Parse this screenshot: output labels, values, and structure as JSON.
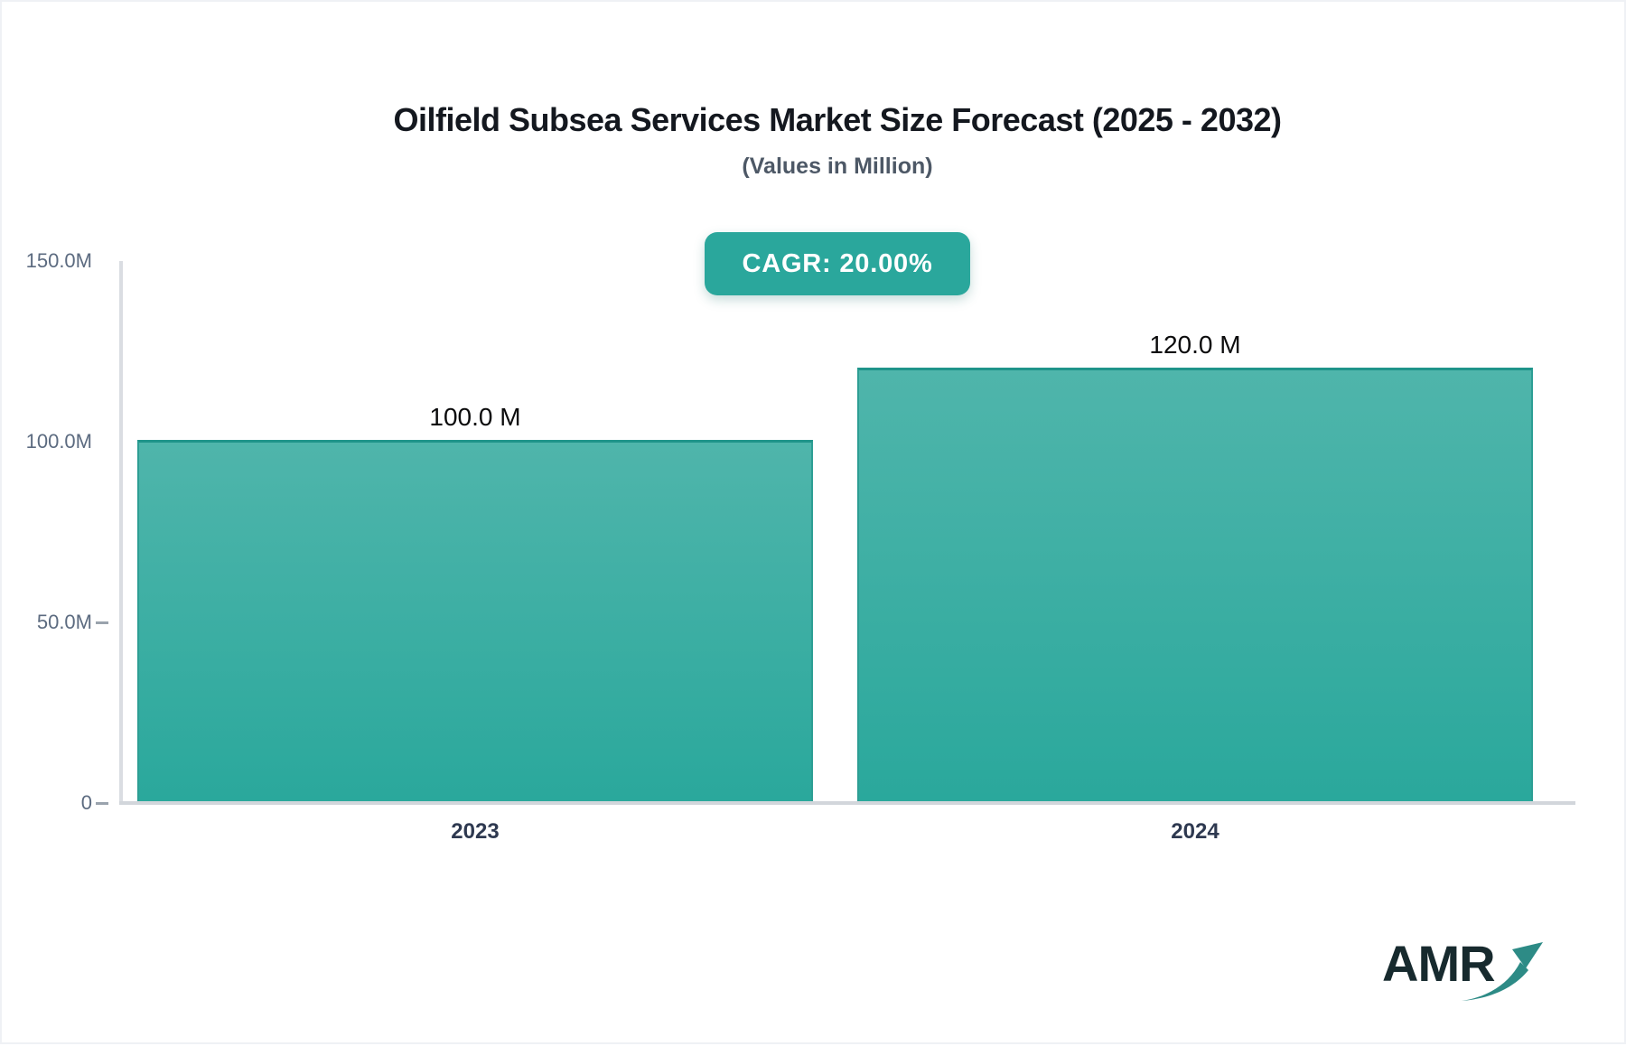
{
  "header": {
    "title": "Oilfield Subsea Services Market Size Forecast (2025 - 2032)",
    "subtitle": "(Values in Million)",
    "cagr_badge": "CAGR: 20.00%"
  },
  "chart_data": {
    "type": "bar",
    "title": "Oilfield Subsea Services Market Size Forecast (2025 - 2032)",
    "subtitle": "(Values in Million)",
    "unit": "Million",
    "categories": [
      "2023",
      "2024"
    ],
    "values": [
      100.0,
      120.0
    ],
    "value_labels": [
      "100.0 M",
      "120.0 M"
    ],
    "cagr_percent": "20.00%",
    "ylim": [
      0,
      150
    ],
    "y_ticks": [
      {
        "label": "150.0M",
        "value": 150,
        "tick_mark": false
      },
      {
        "label": "100.0M",
        "value": 100,
        "tick_mark": false
      },
      {
        "label": "50.0M",
        "value": 50,
        "tick_mark": true
      },
      {
        "label": "0",
        "value": 0,
        "tick_mark": true
      }
    ],
    "grid": false,
    "legend": "none",
    "colors": {
      "bar_gradient_top": "#4fb5ab",
      "bar_gradient_bottom": "#2aa89c",
      "bar_border": "#1f948a",
      "badge_bg": "#2aa79c",
      "axis_line": "#dadde2",
      "baseline": "#d2d6db",
      "tick_color": "#9aa3ad",
      "y_label_color": "#5c6b80",
      "x_label_color": "#2e3950",
      "value_label_color": "#0b0b0c"
    }
  },
  "logo": {
    "text": "AMR"
  }
}
